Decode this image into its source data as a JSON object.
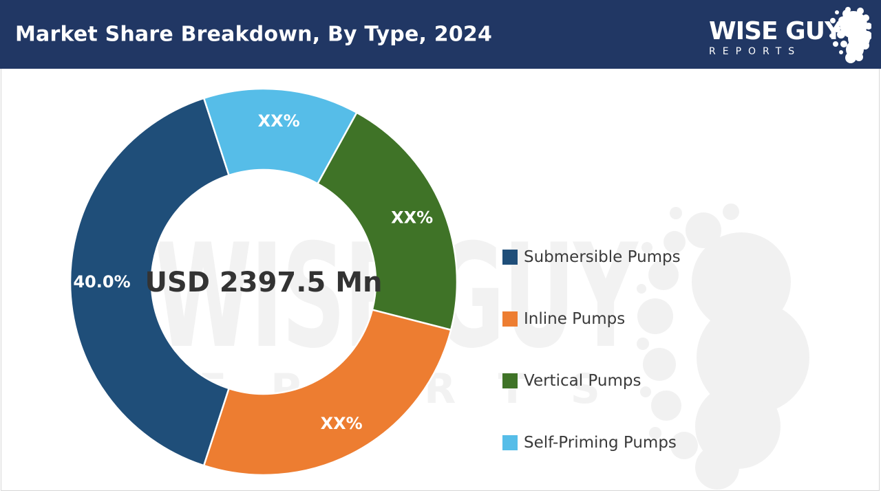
{
  "header": {
    "title": "Market Share Breakdown, By Type, 2024",
    "logo": {
      "line1": "WISE GUY",
      "line2": "REPORTS"
    }
  },
  "watermark": {
    "line1": "WISE GUY",
    "line2": "REPORTS"
  },
  "chart_data": {
    "type": "donut",
    "title": "Market Share Breakdown, By Type, 2024",
    "center_label": "USD 2397.5 Mn",
    "start_angle_deg": 198,
    "inner_radius_ratio": 0.58,
    "slices": [
      {
        "name": "Submersible Pumps",
        "display_label": "40.0%",
        "value_pct": 40,
        "color": "#1F4E79"
      },
      {
        "name": "Self-Priming Pumps",
        "display_label": "XX%",
        "value_pct": 13,
        "color": "#56BDE8"
      },
      {
        "name": "Vertical Pumps",
        "display_label": "XX%",
        "value_pct": 21,
        "color": "#3F7327"
      },
      {
        "name": "Inline Pumps",
        "display_label": "XX%",
        "value_pct": 26,
        "color": "#ED7D31"
      }
    ],
    "legend": [
      {
        "label": "Submersible Pumps",
        "color": "#1F4E79"
      },
      {
        "label": "Inline Pumps",
        "color": "#ED7D31"
      },
      {
        "label": "Vertical Pumps",
        "color": "#3F7327"
      },
      {
        "label": "Self-Priming Pumps",
        "color": "#56BDE8"
      }
    ],
    "legend_position": "right"
  },
  "colors": {
    "header_bg": "#213764",
    "title_text": "#ffffff",
    "center_text": "#333333",
    "legend_text": "#3a3a3a",
    "watermark": "#f2f2f2",
    "frame_border": "#d6d6d6"
  }
}
